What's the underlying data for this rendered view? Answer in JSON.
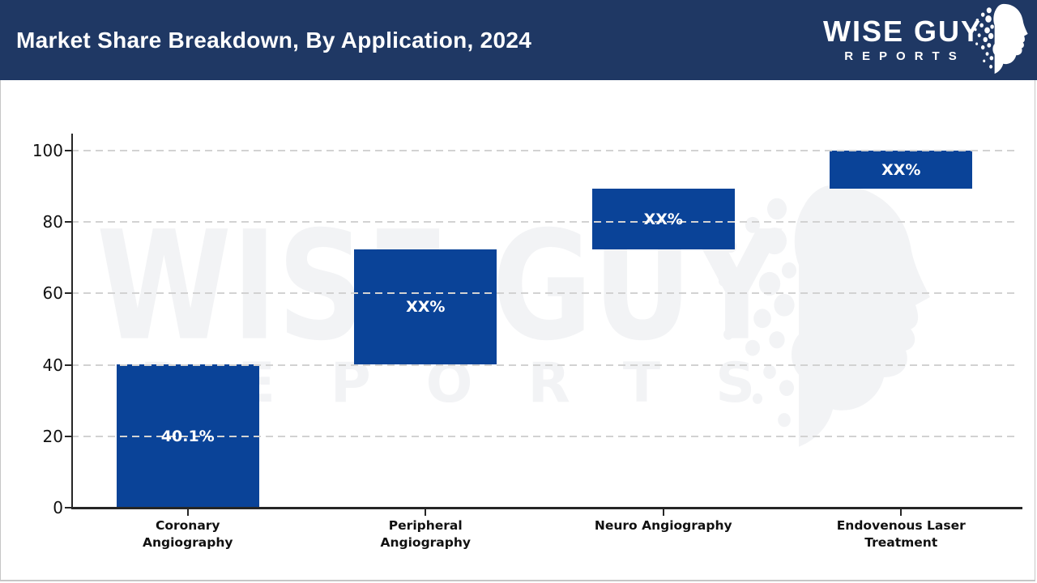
{
  "header": {
    "title": "Market Share Breakdown, By Application, 2024",
    "logo": {
      "name": "WISE GUY",
      "subtitle": "REPORTS"
    }
  },
  "watermark": {
    "line1": "WISE GUY",
    "line2": "REPORTS"
  },
  "chart_data": {
    "type": "bar",
    "subtype": "waterfall",
    "title": "Market Share Breakdown, By Application, 2024",
    "unit": "%",
    "categories": [
      "Coronary Angiography",
      "Peripheral Angiography",
      "Neuro Angiography",
      "Endovenous Laser Treatment"
    ],
    "category_label_lines": [
      [
        "Coronary",
        "Angiography"
      ],
      [
        "Peripheral",
        "Angiography"
      ],
      [
        "Neuro Angiography"
      ],
      [
        "Endovenous Laser",
        "Treatment"
      ]
    ],
    "segments": [
      {
        "category": "Coronary Angiography",
        "start": 0,
        "end": 40.1,
        "value_label": "40.1%"
      },
      {
        "category": "Peripheral Angiography",
        "start": 40.1,
        "end": 72.3,
        "value_label": "XX%"
      },
      {
        "category": "Neuro Angiography",
        "start": 72.3,
        "end": 89.3,
        "value_label": "XX%"
      },
      {
        "category": "Endovenous Laser Treatment",
        "start": 89.3,
        "end": 100,
        "value_label": "XX%"
      }
    ],
    "y_ticks": [
      0,
      20,
      40,
      60,
      80,
      100
    ],
    "ylim": [
      0,
      100
    ],
    "grid": "horizontal-dashed",
    "legend": "none",
    "colors": {
      "bar": "#0a4398",
      "bar_label": "#ffffff",
      "axis": "#262626",
      "gridline": "#d2d2d2",
      "tick_label": "#111111"
    }
  }
}
